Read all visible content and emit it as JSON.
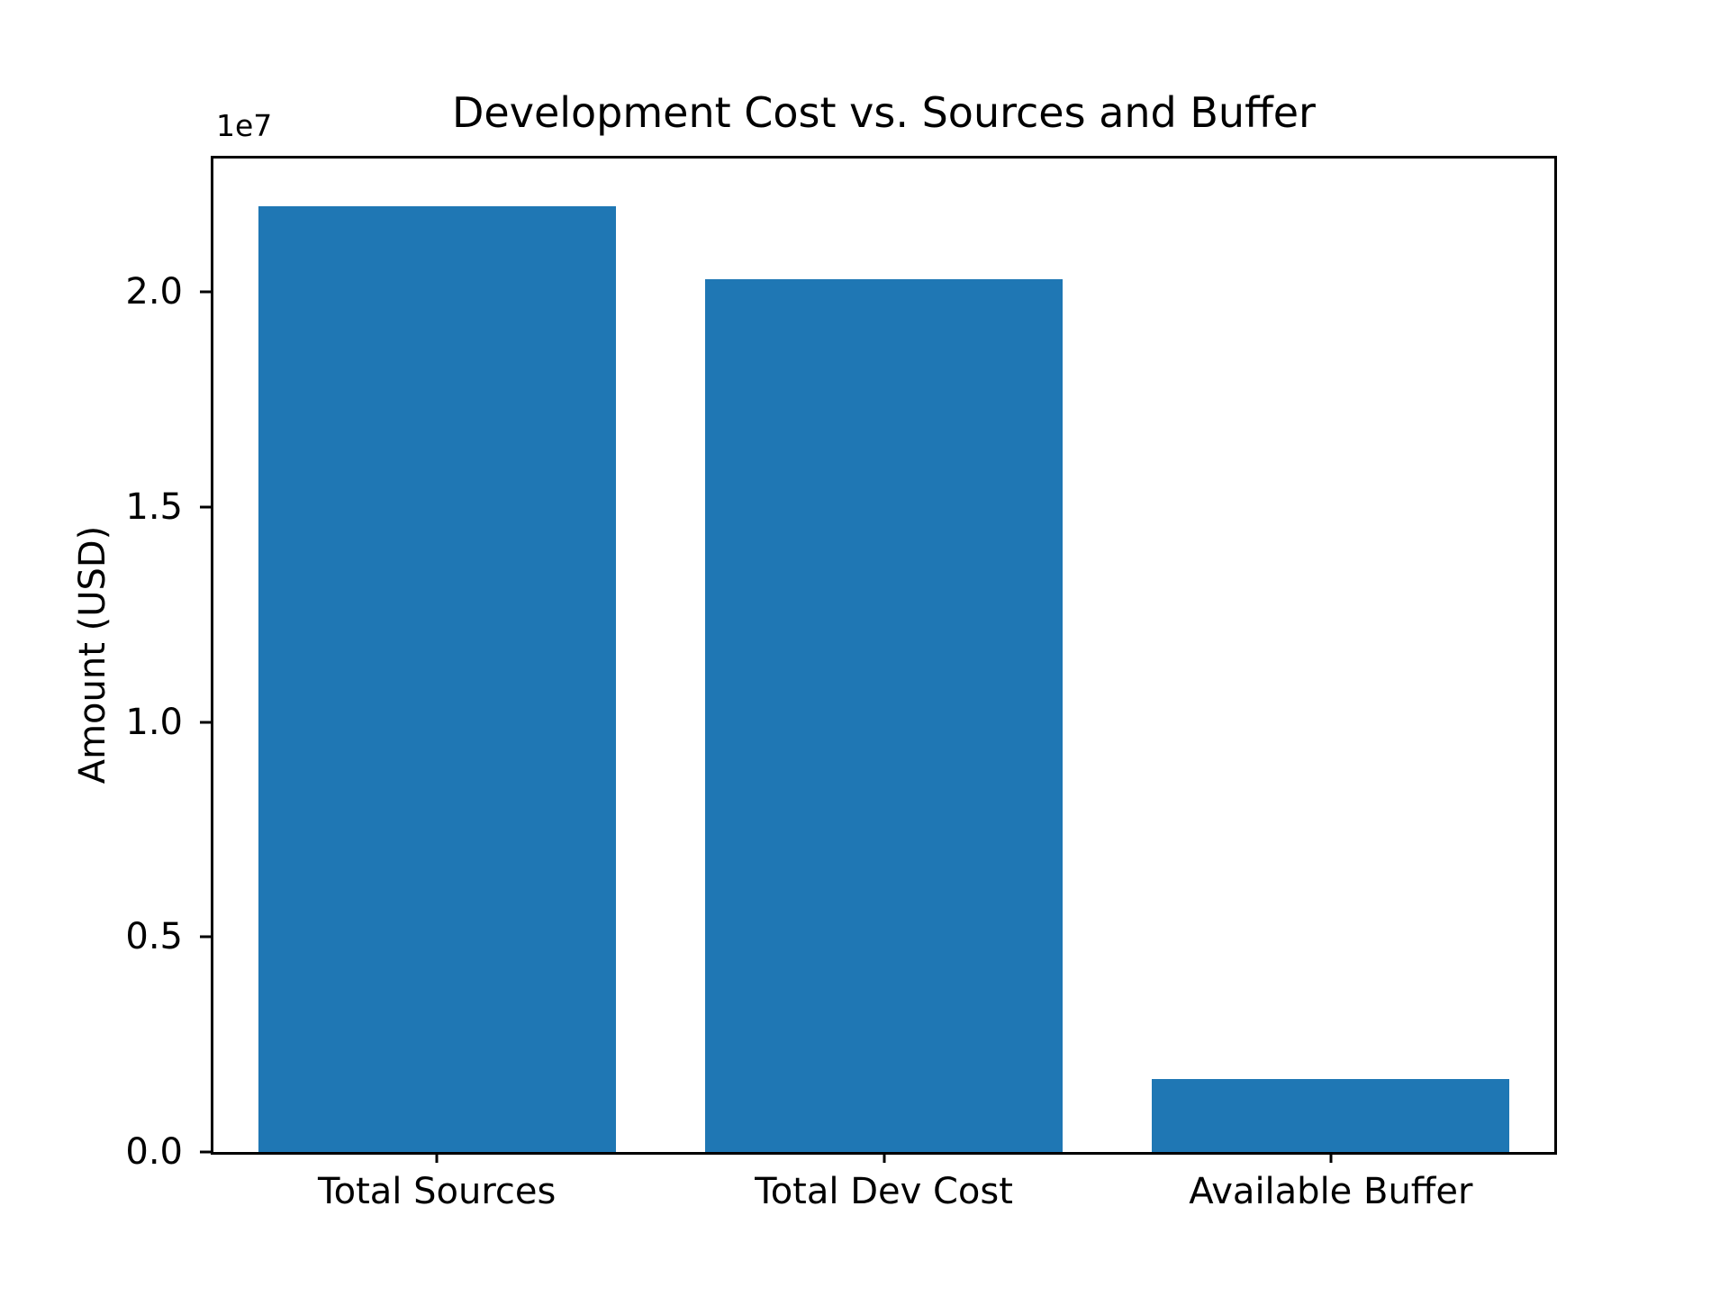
{
  "chart_data": {
    "type": "bar",
    "title": "Development Cost vs. Sources and Buffer",
    "xlabel": "",
    "ylabel": "Amount (USD)",
    "y_offset_label": "1e7",
    "categories": [
      "Total Sources",
      "Total Dev Cost",
      "Available Buffer"
    ],
    "values": [
      22000000,
      20300000,
      1700000
    ],
    "ylim": [
      0,
      23100000
    ],
    "yticks": [
      {
        "value": 0,
        "label": "0.0"
      },
      {
        "value": 5000000,
        "label": "0.5"
      },
      {
        "value": 10000000,
        "label": "1.0"
      },
      {
        "value": 15000000,
        "label": "1.5"
      },
      {
        "value": 20000000,
        "label": "2.0"
      }
    ],
    "bar_color": "#1f77b4",
    "bar_width_fraction": 0.8,
    "grid": false,
    "legend": null
  }
}
